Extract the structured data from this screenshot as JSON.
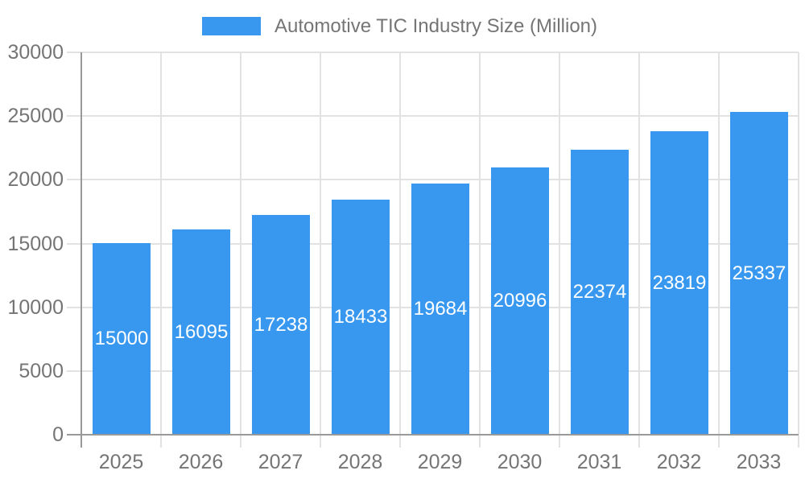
{
  "chart_data": {
    "type": "bar",
    "title": "Automotive TIC Industry Size (Million)",
    "legend": {
      "position": "top",
      "label": "Automotive TIC Industry Size (Million)"
    },
    "categories": [
      "2025",
      "2026",
      "2027",
      "2028",
      "2029",
      "2030",
      "2031",
      "2032",
      "2033"
    ],
    "values": [
      15000,
      16095,
      17238,
      18433,
      19684,
      20996,
      22374,
      23819,
      25337
    ],
    "data_labels_shown": true,
    "xlabel": "",
    "ylabel": "",
    "ylim": [
      0,
      30000
    ],
    "ytick_step": 5000,
    "ytick_labels": [
      "0",
      "5000",
      "10000",
      "15000",
      "20000",
      "25000",
      "30000"
    ],
    "grid": true
  },
  "style": {
    "bar_color": "#3898f0",
    "text_color": "#757575",
    "grid_color": "#e2e2e2",
    "axis_color": "#999999",
    "data_label_color": "#ffffff",
    "background": "#ffffff"
  }
}
